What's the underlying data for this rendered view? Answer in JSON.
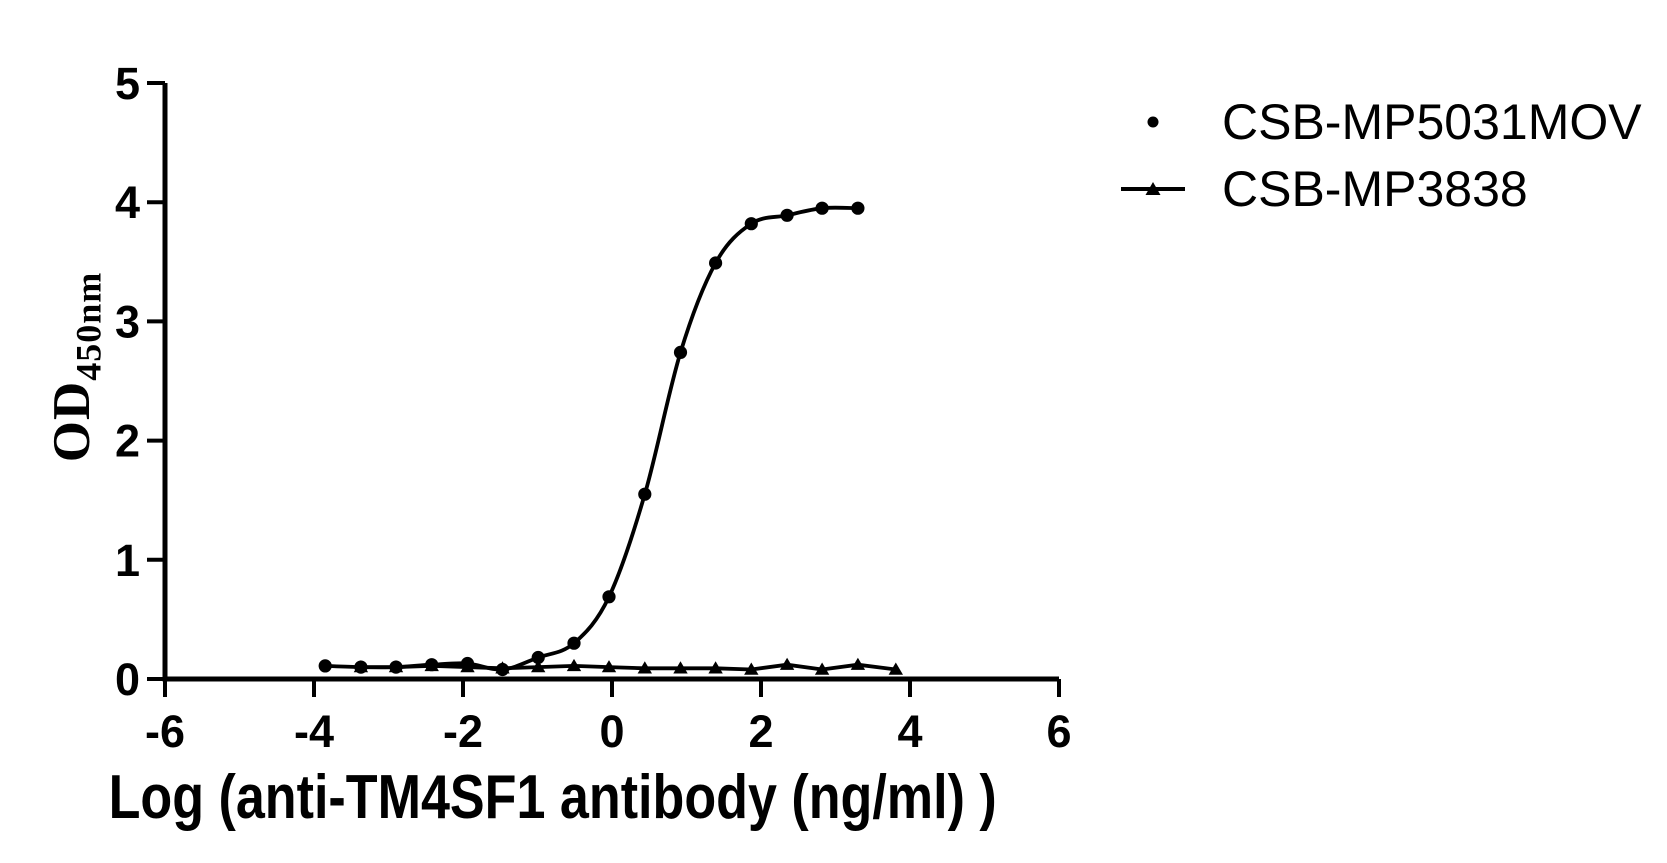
{
  "figure": {
    "background": "#ffffff",
    "ink_color": "#000000"
  },
  "chart_data": {
    "type": "line",
    "title": "",
    "xlabel": "Log (anti-TM4SF1 antibody (ng/ml) )",
    "ylabel_main": "OD",
    "ylabel_sub": "450nm",
    "xlim": [
      -6,
      6
    ],
    "ylim": [
      0,
      5
    ],
    "x_ticks": [
      -6,
      -4,
      -2,
      0,
      2,
      4,
      6
    ],
    "y_ticks": [
      0,
      1,
      2,
      3,
      4,
      5
    ],
    "grid": false,
    "legend_position": "top-right",
    "series": [
      {
        "name": "CSB-MP5031MOV",
        "marker": "circle",
        "line_style": "smooth",
        "x": [
          -3.85,
          -3.37,
          -2.9,
          -2.42,
          -1.94,
          -1.47,
          -0.99,
          -0.51,
          -0.04,
          0.44,
          0.92,
          1.39,
          1.87,
          2.35,
          2.82,
          3.3
        ],
        "y": [
          0.11,
          0.1,
          0.1,
          0.12,
          0.13,
          0.08,
          0.18,
          0.3,
          0.69,
          1.55,
          2.74,
          3.49,
          3.82,
          3.89,
          3.95,
          3.95
        ]
      },
      {
        "name": "CSB-MP3838",
        "marker": "triangle",
        "line_style": "straight",
        "x": [
          -3.37,
          -2.9,
          -2.42,
          -1.94,
          -1.47,
          -0.99,
          -0.51,
          -0.04,
          0.44,
          0.92,
          1.39,
          1.87,
          2.35,
          2.82,
          3.3,
          3.81
        ],
        "y": [
          0.1,
          0.1,
          0.11,
          0.1,
          0.09,
          0.1,
          0.11,
          0.1,
          0.09,
          0.09,
          0.09,
          0.08,
          0.12,
          0.08,
          0.12,
          0.08
        ]
      }
    ]
  }
}
